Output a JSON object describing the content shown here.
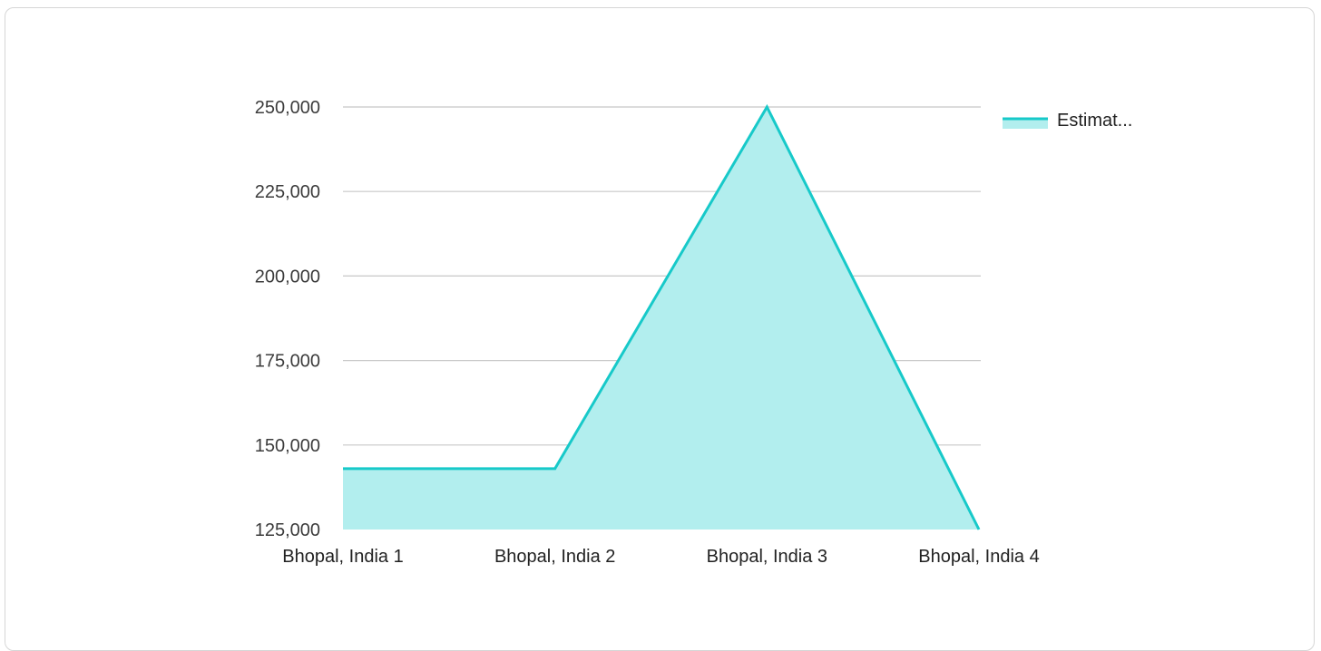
{
  "chart_data": {
    "type": "area",
    "categories": [
      "Bhopal, India 1",
      "Bhopal, India 2",
      "Bhopal, India 3",
      "Bhopal, India 4"
    ],
    "series": [
      {
        "name": "Estimat...",
        "values": [
          143000,
          143000,
          250000,
          125000
        ]
      }
    ],
    "ylim": [
      125000,
      250000
    ],
    "yticks": [
      125000,
      150000,
      175000,
      200000,
      225000,
      250000
    ],
    "ytick_labels": [
      "125,000",
      "150,000",
      "175,000",
      "200,000",
      "225,000",
      "250,000"
    ],
    "grid": true,
    "legend_position": "right",
    "colors": {
      "line": "#17c9c9",
      "fill": "#b2eeee",
      "grid": "#c8c8c8"
    }
  }
}
